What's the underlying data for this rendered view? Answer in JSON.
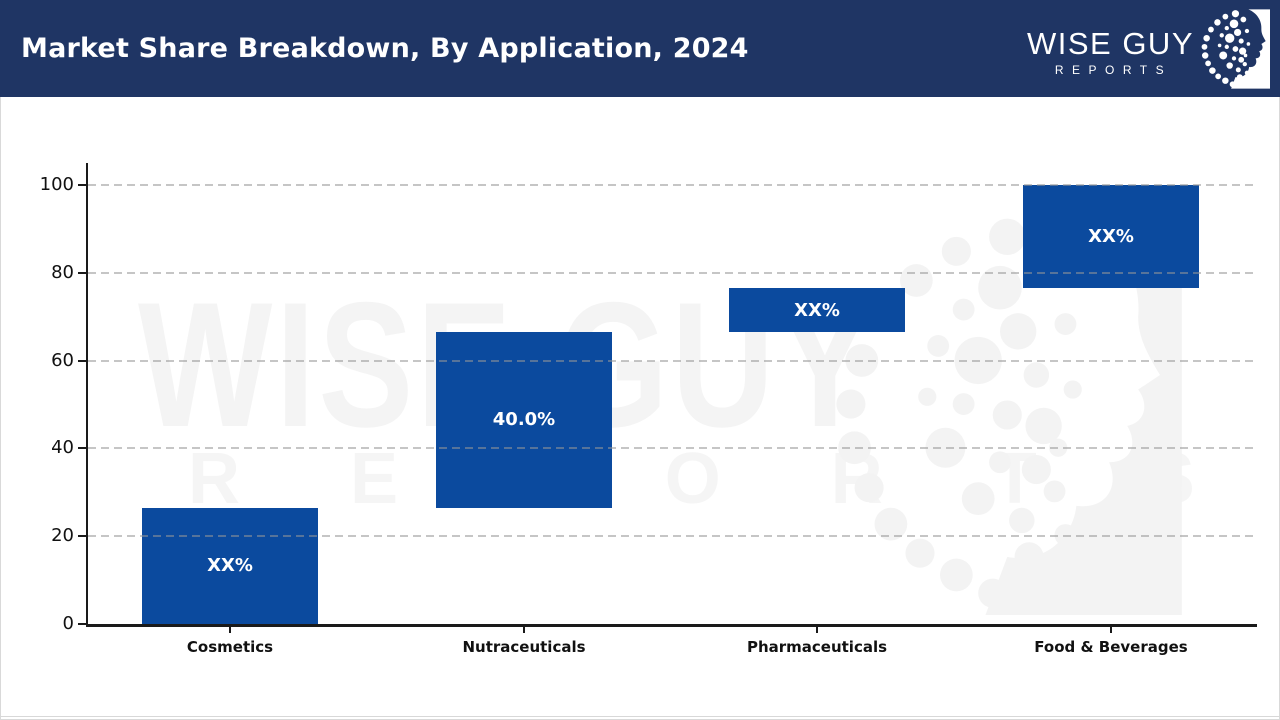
{
  "page": {
    "background": "#ffffff",
    "frame_border_color": "#d9d9d9"
  },
  "header": {
    "background": "#1f3564",
    "title": "Market Share Breakdown, By Application, 2024",
    "title_color": "#ffffff",
    "logo": {
      "line1": "WISE GUY",
      "line2": "REPORTS"
    }
  },
  "watermark": {
    "line1": "WISE GUY",
    "line2": "R E P O R T S"
  },
  "chart_data": {
    "type": "bar",
    "subtype": "floating-waterfall",
    "title": "Market Share Breakdown, By Application, 2024",
    "categories": [
      "Cosmetics",
      "Nutraceuticals",
      "Pharmaceuticals",
      "Food & Beverages"
    ],
    "segments": [
      {
        "category": "Cosmetics",
        "start": 0,
        "end": 26.5,
        "value_label": "XX%"
      },
      {
        "category": "Nutraceuticals",
        "start": 26.5,
        "end": 66.5,
        "value_label": "40.0%"
      },
      {
        "category": "Pharmaceuticals",
        "start": 66.5,
        "end": 76.5,
        "value_label": "XX%"
      },
      {
        "category": "Food & Beverages",
        "start": 76.5,
        "end": 100,
        "value_label": "XX%"
      }
    ],
    "y_ticks": [
      "0",
      "20",
      "40",
      "60",
      "80",
      "100"
    ],
    "ylim": [
      0,
      100
    ],
    "xlabel": "",
    "ylabel": "",
    "legend": "none",
    "grid": "horizontal-dashed",
    "grid_color": "#d0d0d0",
    "axis_color": "#1a1a1a",
    "bar_color": "#0b4a9e",
    "bar_label_color": "#ffffff"
  }
}
